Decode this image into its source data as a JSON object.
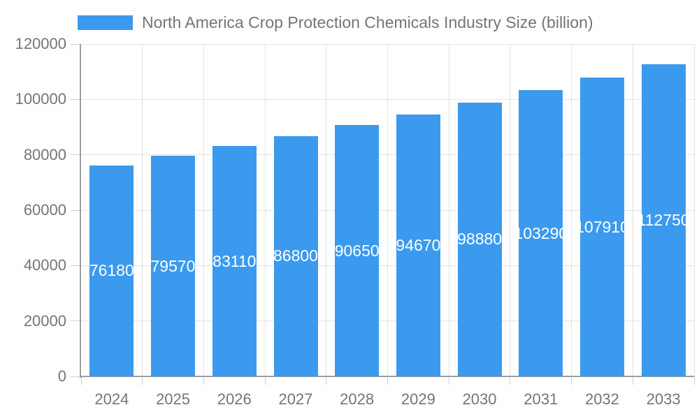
{
  "legend": {
    "label": "North America Crop Protection Chemicals Industry Size (billion)"
  },
  "chart_data": {
    "type": "bar",
    "title": "North America Crop Protection Chemicals Industry Size (billion)",
    "categories": [
      "2024",
      "2025",
      "2026",
      "2027",
      "2028",
      "2029",
      "2030",
      "2031",
      "2032",
      "2033"
    ],
    "series": [
      {
        "name": "North America Crop Protection Chemicals Industry Size (billion)",
        "values": [
          76180,
          79570,
          83110,
          86800,
          90650,
          94670,
          98880,
          103290,
          107910,
          112750
        ]
      }
    ],
    "bar_labels": [
      "76180",
      "79570",
      "83110",
      "86800",
      "90650",
      "94670",
      "98880",
      "103290",
      "107910",
      "112750"
    ],
    "xlabel": "",
    "ylabel": "",
    "ylim": [
      0,
      120000
    ],
    "y_ticks": [
      0,
      20000,
      40000,
      60000,
      80000,
      100000,
      120000
    ],
    "grid": "horizontal and vertical",
    "legend_position": "top-left",
    "bar_label_position": "inside-center"
  },
  "colors": {
    "bar": "#3B9AEE",
    "axis_line": "#9E9E9E",
    "gridline": "#E3E3E3",
    "tick": "#CFCFCF",
    "axis_text": "#757575",
    "bar_label_text": "#FFFFFF",
    "background": "#FFFFFF"
  }
}
